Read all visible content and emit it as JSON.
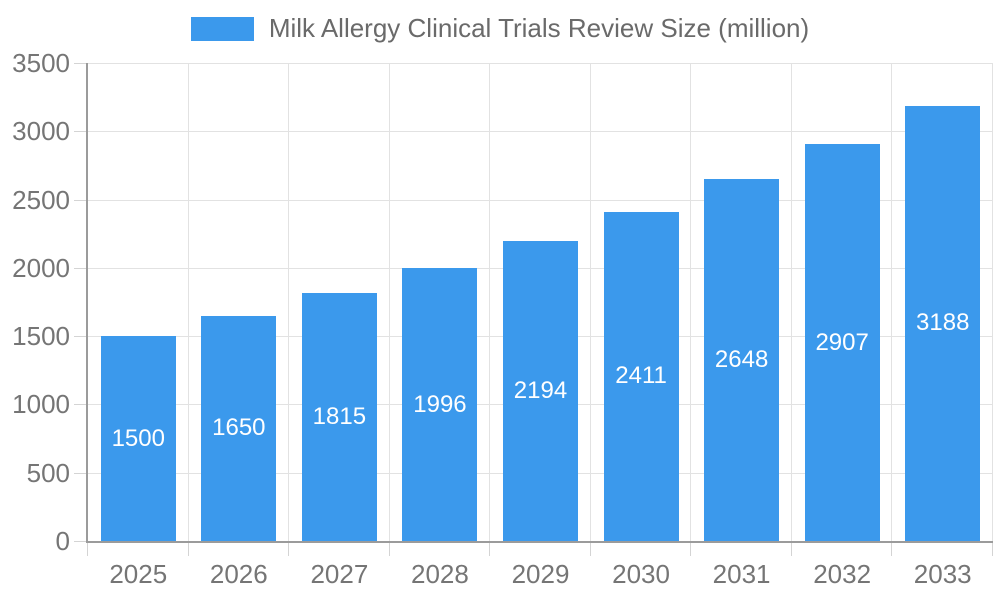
{
  "chart_data": {
    "type": "bar",
    "title": "Milk Allergy Clinical Trials Review Size (million)",
    "series_name": "Milk Allergy Clinical Trials Review Size (million)",
    "categories": [
      "2025",
      "2026",
      "2027",
      "2028",
      "2029",
      "2030",
      "2031",
      "2032",
      "2033"
    ],
    "values": [
      1500,
      1650,
      1815,
      1996,
      2194,
      2411,
      2648,
      2907,
      3188
    ],
    "xlabel": "",
    "ylabel": "",
    "ylim": [
      0,
      3500
    ],
    "ytick_step": 500,
    "yticks": [
      0,
      500,
      1000,
      1500,
      2000,
      2500,
      3000,
      3500
    ],
    "grid": true,
    "legend_position": "top",
    "bar_label_position": "center",
    "colors": {
      "bar": "#3B99EC",
      "bar_label": "#FFFFFF",
      "axis_text": "#757575",
      "legend_text": "#6A6A6A",
      "grid_line": "#E2E2E2",
      "axis_line": "#9B9B9B",
      "tick_mark": "#D4D4D4",
      "background": "#FFFFFF"
    }
  }
}
